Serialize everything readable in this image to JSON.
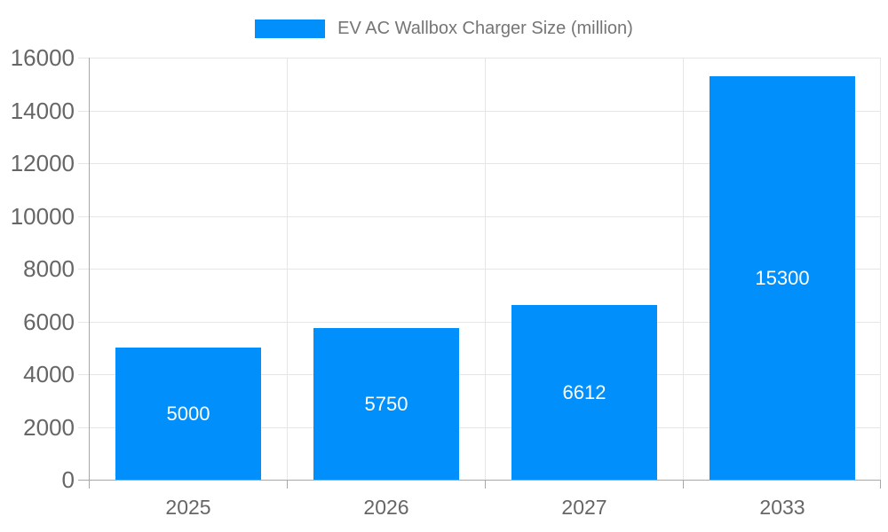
{
  "chart_data": {
    "type": "bar",
    "legend_label": "EV AC Wallbox Charger Size (million)",
    "legend_position": "top",
    "categories": [
      "2025",
      "2026",
      "2027",
      "2033"
    ],
    "values": [
      5000,
      5750,
      6612,
      15300
    ],
    "bar_labels": [
      "5000",
      "5750",
      "6612",
      "15300"
    ],
    "ylim": [
      0,
      16000
    ],
    "ytick_step": 2000,
    "ytick_labels": [
      "0",
      "2000",
      "4000",
      "6000",
      "8000",
      "10000",
      "12000",
      "14000",
      "16000"
    ],
    "grid": {
      "horizontal": true,
      "vertical": true
    },
    "colors": {
      "bar": "#008FFB",
      "bar_value_label": "#FFFFFF",
      "axis_label": "#666666",
      "legend_text": "#757575",
      "gridline": "#E6E6E6",
      "axis_line": "#A8A8A8",
      "background": "#FFFFFF"
    }
  }
}
